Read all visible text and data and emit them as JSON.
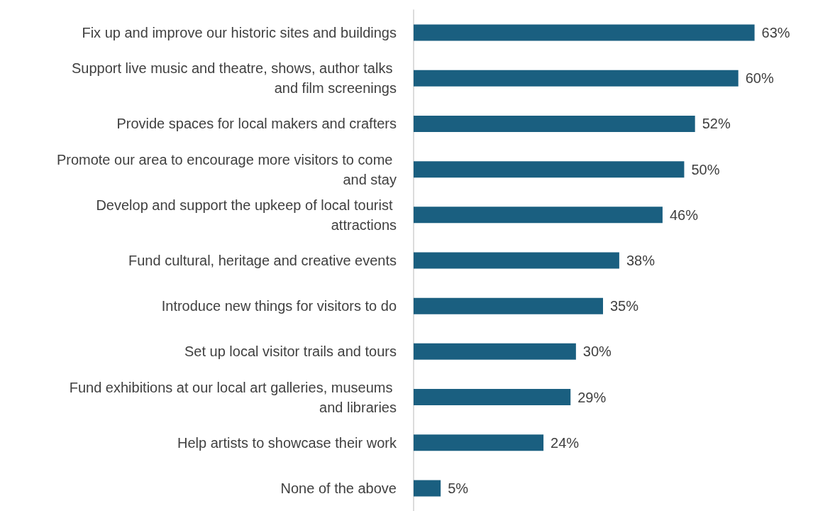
{
  "chart_data": {
    "type": "bar",
    "orientation": "horizontal",
    "color": "#1a5f80",
    "categories": [
      "Fix up and improve our historic sites and buildings",
      "Support live music and theatre, shows, author talks and film screenings",
      "Provide spaces for local makers and crafters",
      "Promote our area to encourage more visitors to come and stay",
      "Develop and support the upkeep of local tourist attractions",
      "Fund cultural, heritage and creative events",
      "Introduce new things for visitors to do",
      "Set up local visitor trails and tours",
      "Fund exhibitions at our local art galleries, museums and libraries",
      "Help artists to showcase their work",
      "None of the above"
    ],
    "values": [
      63,
      60,
      52,
      50,
      46,
      38,
      35,
      30,
      29,
      24,
      5
    ],
    "value_labels": [
      "63%",
      "60%",
      "52%",
      "50%",
      "46%",
      "38%",
      "35%",
      "30%",
      "29%",
      "24%",
      "5%"
    ]
  }
}
